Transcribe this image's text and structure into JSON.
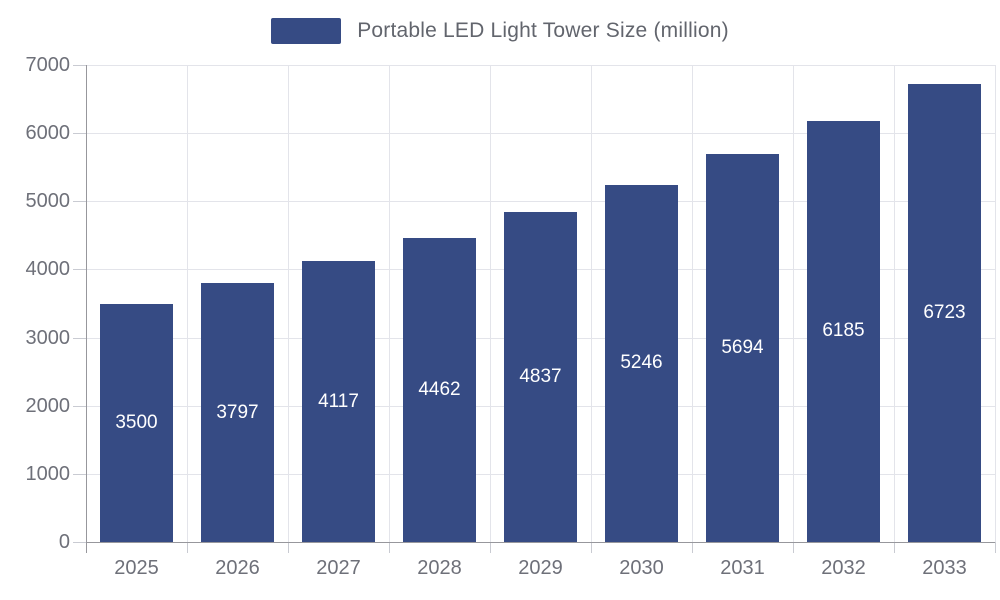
{
  "legend": {
    "label": "Portable LED Light Tower Size (million)"
  },
  "colors": {
    "bar": "#364B84",
    "bar_label": "#FFFFFF",
    "grid": "#E3E4EA",
    "tick": "#C9CBD2",
    "axis_line": "#97979C",
    "axis_text": "#6E7079",
    "legend_text": "#62656D",
    "background": "#FFFFFF"
  },
  "chart_data": {
    "type": "bar",
    "title": "Portable LED Light Tower Size (million)",
    "categories": [
      "2025",
      "2026",
      "2027",
      "2028",
      "2029",
      "2030",
      "2031",
      "2032",
      "2033"
    ],
    "series": [
      {
        "name": "Portable LED Light Tower Size (million)",
        "values": [
          3500,
          3797,
          4117,
          4462,
          4837,
          5246,
          5694,
          6185,
          6723
        ]
      }
    ],
    "values": [
      3500,
      3797,
      4117,
      4462,
      4837,
      5246,
      5694,
      6185,
      6723
    ],
    "xlabel": "",
    "ylabel": "",
    "ylim": [
      0,
      7000
    ],
    "ytick_step": 1000,
    "yticks": [
      0,
      1000,
      2000,
      3000,
      4000,
      5000,
      6000,
      7000
    ],
    "grid": true,
    "legend_position": "top-center",
    "bar_label_position": "inside-center"
  }
}
